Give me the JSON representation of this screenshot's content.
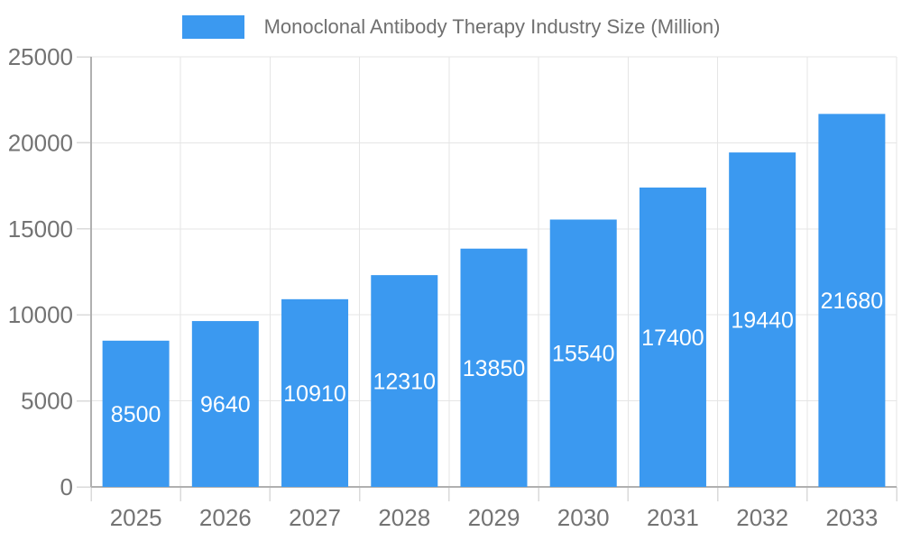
{
  "chart_data": {
    "type": "bar",
    "title": "Monoclonal Antibody Therapy Industry Size (Million)",
    "categories": [
      "2025",
      "2026",
      "2027",
      "2028",
      "2029",
      "2030",
      "2031",
      "2032",
      "2033"
    ],
    "series": [
      {
        "name": "Monoclonal Antibody Therapy Industry Size (Million)",
        "values": [
          8500,
          9640,
          10910,
          12310,
          13850,
          15540,
          17400,
          19440,
          21680
        ]
      }
    ],
    "value_labels_shown": true,
    "xlabel": "",
    "ylabel": "",
    "ylim": [
      0,
      25000
    ],
    "yticks": [
      0,
      5000,
      10000,
      15000,
      20000,
      25000
    ],
    "grid": true,
    "legend_position": "top",
    "colors": {
      "bar": "#3b99f0",
      "bar_value_label": "#ffffff",
      "axis_line": "#b0b0b0",
      "gridline": "#e5e5e5",
      "tick_mark": "#dadada",
      "tick_text": "#737373",
      "legend_text": "#707070",
      "background": "#ffffff"
    }
  }
}
